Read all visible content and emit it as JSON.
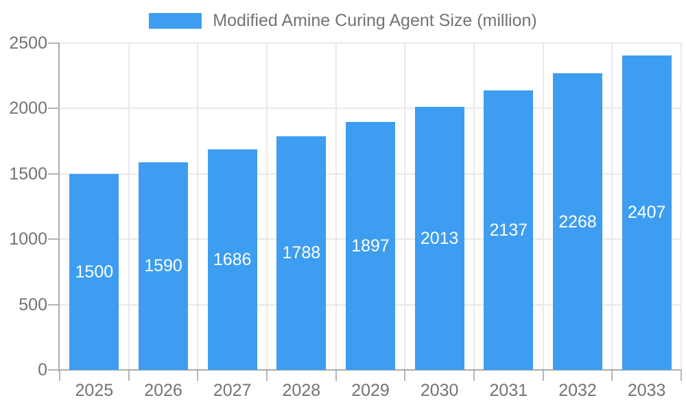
{
  "chart_data": {
    "type": "bar",
    "title": "",
    "legend": {
      "label": "Modified Amine Curing Agent Size (million)",
      "position": "top"
    },
    "categories": [
      "2025",
      "2026",
      "2027",
      "2028",
      "2029",
      "2030",
      "2031",
      "2032",
      "2033"
    ],
    "series": [
      {
        "name": "Modified Amine Curing Agent Size (million)",
        "values": [
          1500,
          1590,
          1686,
          1788,
          1897,
          2013,
          2137,
          2268,
          2407
        ],
        "color": "#3d9df0"
      }
    ],
    "value_labels_shown": true,
    "ylim": [
      0,
      2500
    ],
    "yticks": [
      0,
      500,
      1000,
      1500,
      2000,
      2500
    ],
    "grid": true,
    "colors": {
      "bar": "#3d9df0",
      "value_label": "#ffffff",
      "axis_text": "#737373",
      "grid_line": "#e9e9e9",
      "axis_line": "#ababab",
      "tick": "#b5b5b5",
      "background": "#ffffff"
    }
  }
}
